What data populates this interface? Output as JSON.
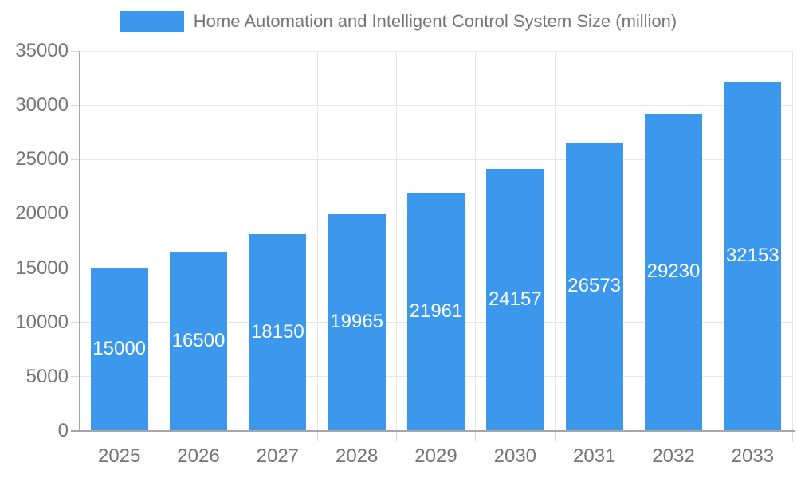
{
  "legend": {
    "label": "Home Automation and Intelligent Control System Size (million)"
  },
  "chart_data": {
    "type": "bar",
    "title": "Home Automation and Intelligent Control System Size (million)",
    "categories": [
      "2025",
      "2026",
      "2027",
      "2028",
      "2029",
      "2030",
      "2031",
      "2032",
      "2033"
    ],
    "values": [
      15000,
      16500,
      18150,
      19965,
      21961,
      24157,
      26573,
      29230,
      32153
    ],
    "xlabel": "",
    "ylabel": "",
    "ylim": [
      0,
      35000
    ],
    "yticks": [
      0,
      5000,
      10000,
      15000,
      20000,
      25000,
      30000,
      35000
    ],
    "grid": true,
    "legend_position": "top",
    "data_labels": "inside-center-white"
  },
  "colors": {
    "bar": "#3B98EC",
    "bar_label": "#FFFFFF",
    "text": "#757575",
    "grid": "#E6E6E6",
    "tick": "#D6D6D6",
    "axis": "#A6A6A6",
    "background": "#FFFFFF"
  }
}
